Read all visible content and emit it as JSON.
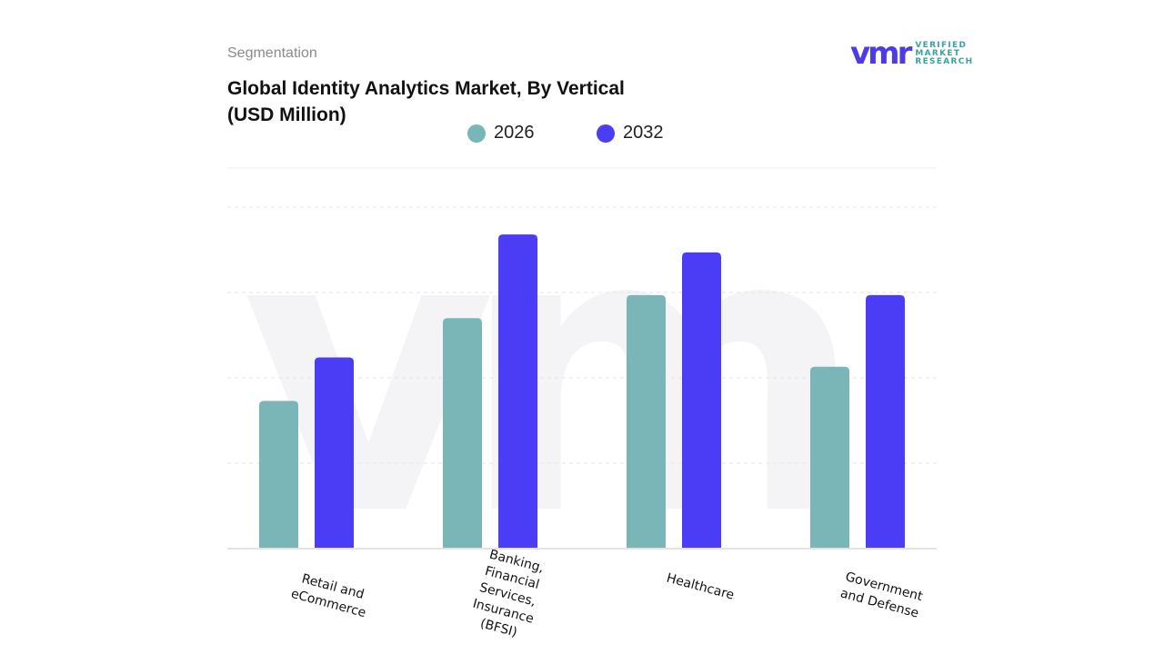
{
  "header": {
    "section": "Segmentation",
    "title_line1": "Global Identity Analytics Market, By Vertical",
    "title_line2": "(USD Million)"
  },
  "logo": {
    "mark": "vmr",
    "line1": "VERIFIED",
    "line2": "MARKET",
    "line3": "RESEARCH"
  },
  "chart_data": {
    "type": "bar",
    "title": "Global Identity Analytics Market, By Vertical (USD Million)",
    "xlabel": "",
    "ylabel": "",
    "categories": [
      "Retail and\neCommerce",
      "Banking,\nFinancial\nServices,\nInsurance\n(BFSI)",
      "Healthcare",
      "Government\nand Defense"
    ],
    "series": [
      {
        "name": "2026",
        "color": "#7ab5b7",
        "values": [
          1.73,
          2.7,
          2.97,
          2.13
        ]
      },
      {
        "name": "2032",
        "color": "#4b3cf5",
        "values": [
          2.24,
          3.68,
          3.47,
          2.97
        ]
      }
    ],
    "ylim": [
      0,
      4
    ],
    "y_ticks_shown": false,
    "grid": true,
    "legend_position": "top-center"
  }
}
